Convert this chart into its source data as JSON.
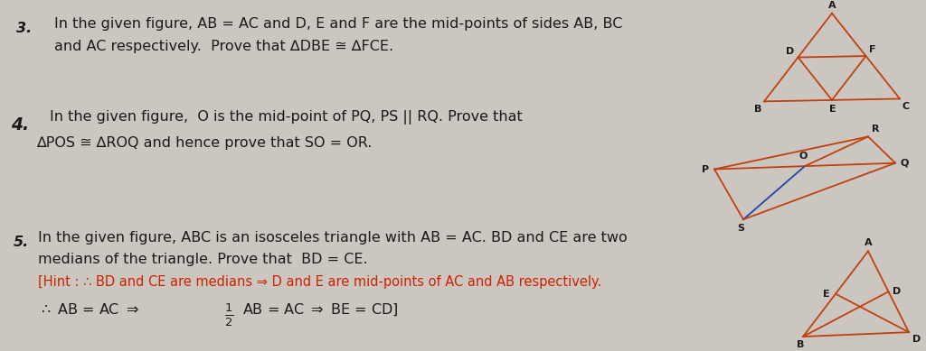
{
  "bg_color": "#cbc7c0",
  "text_color": "#1a1a1a",
  "figure_color": "#c04010",
  "hint_color": "#cc2200",
  "blue_color": "#2244aa",
  "q3_num": "3.",
  "q3_line1": "In the given figure, AB = AC and D, E and F are the mid-points of sides AB, BC",
  "q3_line2": "and AC respectively.  Prove that ∆DBE ≅ ∆FCE.",
  "q4_num": "4.",
  "q4_line1": "In the given figure,  O is the mid-point of PQ, PS || RQ. Prove that",
  "q4_line2": "∆POS ≅ ∆ROQ and hence prove that SO = OR.",
  "q5_num": "5.",
  "q5_line1": "In the given figure, ABC is an isosceles triangle with AB = AC. BD and CE are two",
  "q5_line2": "medians of the triangle. Prove that  BD = CE.",
  "q5_hint": "[Hint : ∴ BD and CE are medians ⇒ D and E are mid-points of AC and AB respectively.",
  "q5_final1": "∴ AB = AC ⇒",
  "q5_final2": "AB = AC ⇒ BE = CD]"
}
